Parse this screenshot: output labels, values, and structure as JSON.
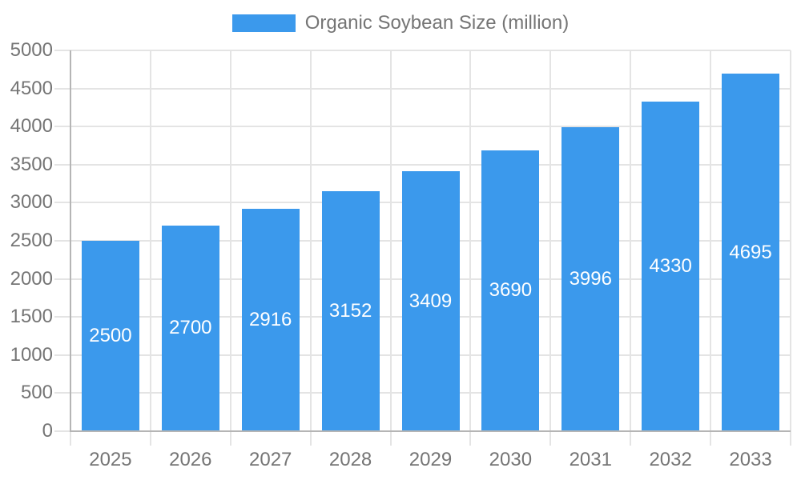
{
  "legend": {
    "label": "Organic Soybean Size (million)"
  },
  "chart_data": {
    "type": "bar",
    "title": "Organic Soybean Size (million)",
    "categories": [
      "2025",
      "2026",
      "2027",
      "2028",
      "2029",
      "2030",
      "2031",
      "2032",
      "2033"
    ],
    "values": [
      2500,
      2700,
      2916,
      3152,
      3409,
      3690,
      3996,
      4330,
      4695
    ],
    "xlabel": "",
    "ylabel": "",
    "ylim": [
      0,
      5000
    ],
    "ytick_step": 500,
    "yticks": [
      0,
      500,
      1000,
      1500,
      2000,
      2500,
      3000,
      3500,
      4000,
      4500,
      5000
    ],
    "grid": true,
    "legend_position": "top-center",
    "bar_labels_visible": true,
    "colors": {
      "bar": "#3B99EC",
      "grid": "#e4e4e4",
      "axis": "#b5b5b5",
      "text": "#757575",
      "bar_label": "#ffffff",
      "background": "#ffffff"
    }
  }
}
